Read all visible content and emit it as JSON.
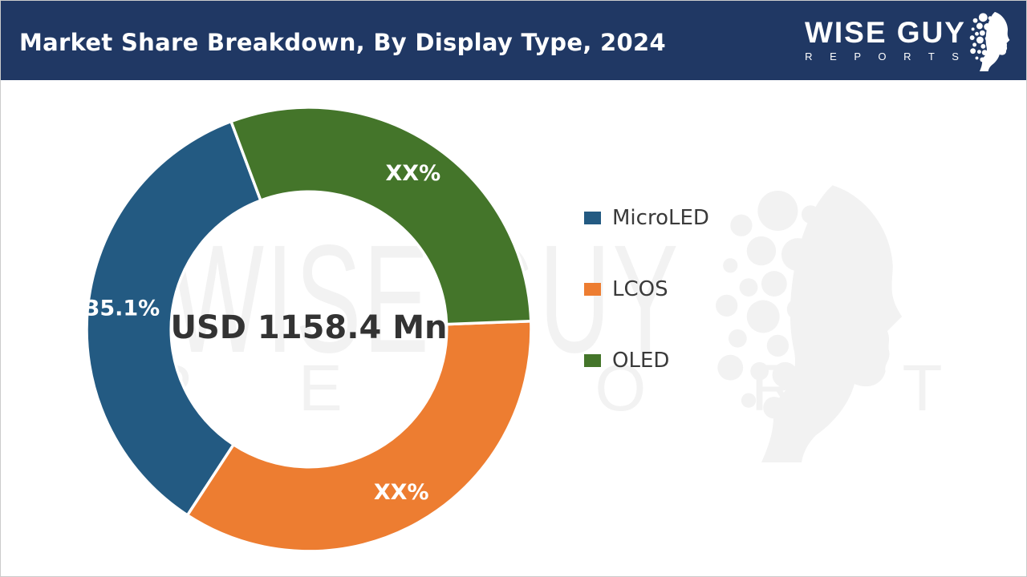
{
  "header": {
    "title": "Market Share Breakdown, By Display Type, 2024",
    "bg_color": "#203864",
    "logo": {
      "brand_line1": "WISE GUY",
      "brand_line2": "R E P O R T S"
    }
  },
  "watermark": {
    "text_line1": "WISE GUY",
    "text_line2": "R E P O R T S",
    "color": "#f2f2f2"
  },
  "chart_data": {
    "type": "pie",
    "subtype": "donut",
    "title": "Market Share Breakdown, By Display Type, 2024",
    "center_label": "USD 1158.4 Mn",
    "start_angle_deg": 110.5,
    "direction": "counterclockwise",
    "inner_radius_ratio": 0.62,
    "legend_position": "right",
    "separator_color": "#ffffff",
    "slice_label_color": "#ffffff",
    "segments": [
      {
        "name": "MicroLED",
        "color": "#235a82",
        "slice_label": "35.1%",
        "arc_pct": 35.1
      },
      {
        "name": "LCOS",
        "color": "#ed7d31",
        "slice_label": "XX%",
        "arc_pct": 34.8
      },
      {
        "name": "OLED",
        "color": "#44752a",
        "slice_label": "XX%",
        "arc_pct": 30.1
      }
    ],
    "note": "LCOS and OLED slice labels are masked as XX% in the source graphic; arc_pct values estimated from arc geometry."
  }
}
